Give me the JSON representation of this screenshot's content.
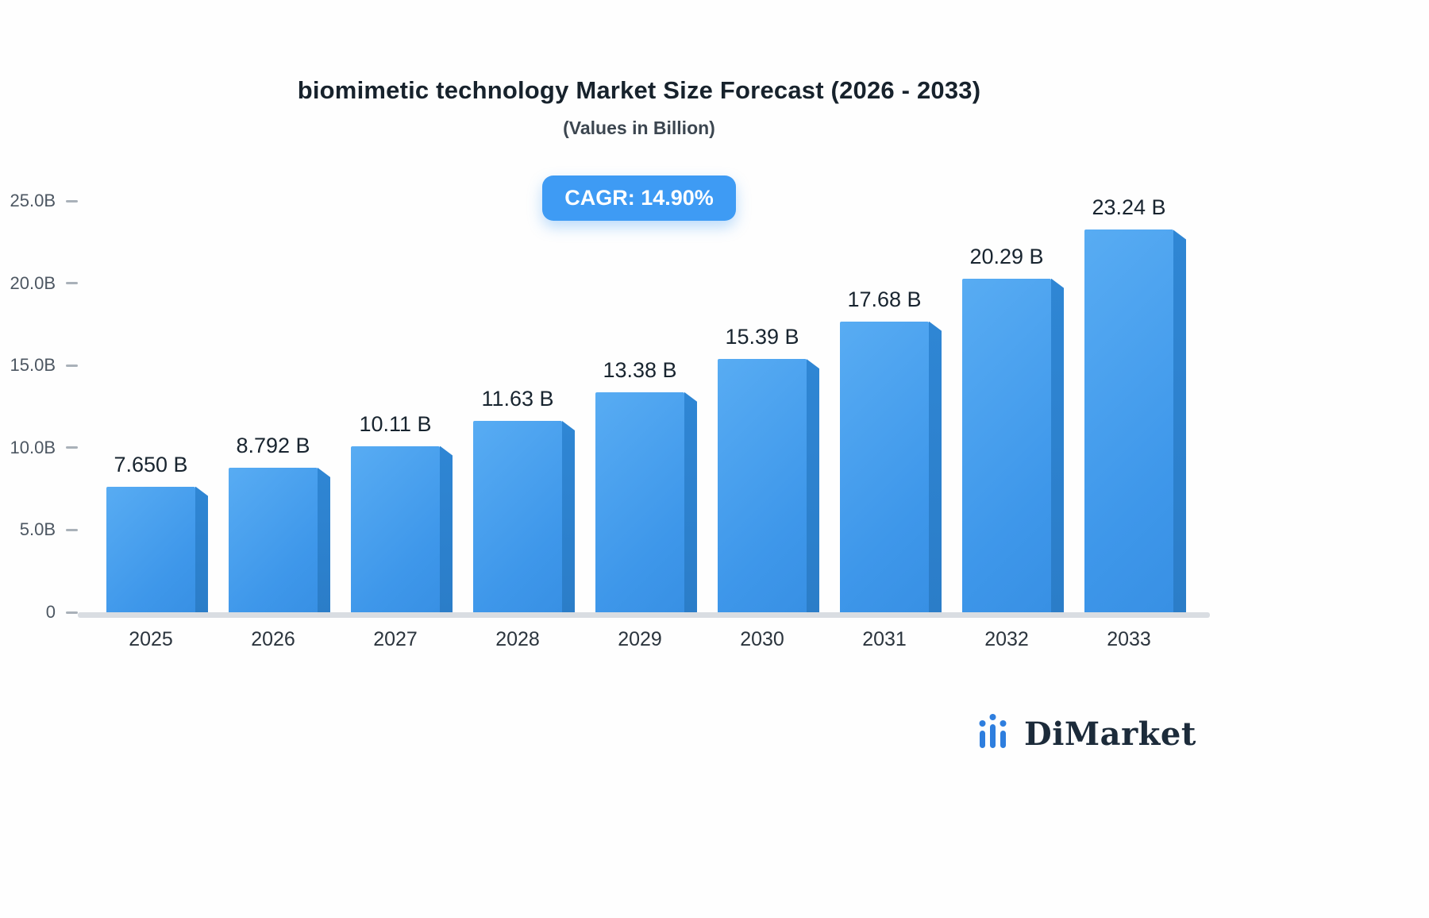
{
  "header": {
    "title": "biomimetic technology Market Size Forecast (2026 - 2033)",
    "subtitle": "(Values in Billion)",
    "cagr_badge": "CAGR: 14.90%"
  },
  "brand": {
    "name": "DiMarket"
  },
  "colors": {
    "bar_front": "#3e97ea",
    "bar_front_light": "#58acf3",
    "bar_side": "#2b7dc8",
    "badge_bg": "#3e9bf4",
    "baseline": "#d9dde2",
    "brand_blue": "#2e7ede",
    "brand_text": "#1c2b3a"
  },
  "chart_data": {
    "type": "bar",
    "title": "biomimetic technology Market Size Forecast (2026 - 2033)",
    "subtitle": "(Values in Billion)",
    "annotation": "CAGR: 14.90%",
    "categories": [
      "2025",
      "2026",
      "2027",
      "2028",
      "2029",
      "2030",
      "2031",
      "2032",
      "2033"
    ],
    "values": [
      7.65,
      8.792,
      10.11,
      11.63,
      13.38,
      15.39,
      17.68,
      20.29,
      23.24
    ],
    "value_labels": [
      "7.650 B",
      "8.792 B",
      "10.11 B",
      "11.63 B",
      "13.38 B",
      "15.39 B",
      "17.68 B",
      "20.29 B",
      "23.24 B"
    ],
    "xlabel": "",
    "ylabel": "",
    "ylim": [
      0,
      25
    ],
    "ytick_values": [
      0,
      5,
      10,
      15,
      20,
      25
    ],
    "ytick_labels": [
      "0",
      "5.0B",
      "10.0B",
      "15.0B",
      "20.0B",
      "25.0B"
    ],
    "grid": false,
    "legend": false
  }
}
